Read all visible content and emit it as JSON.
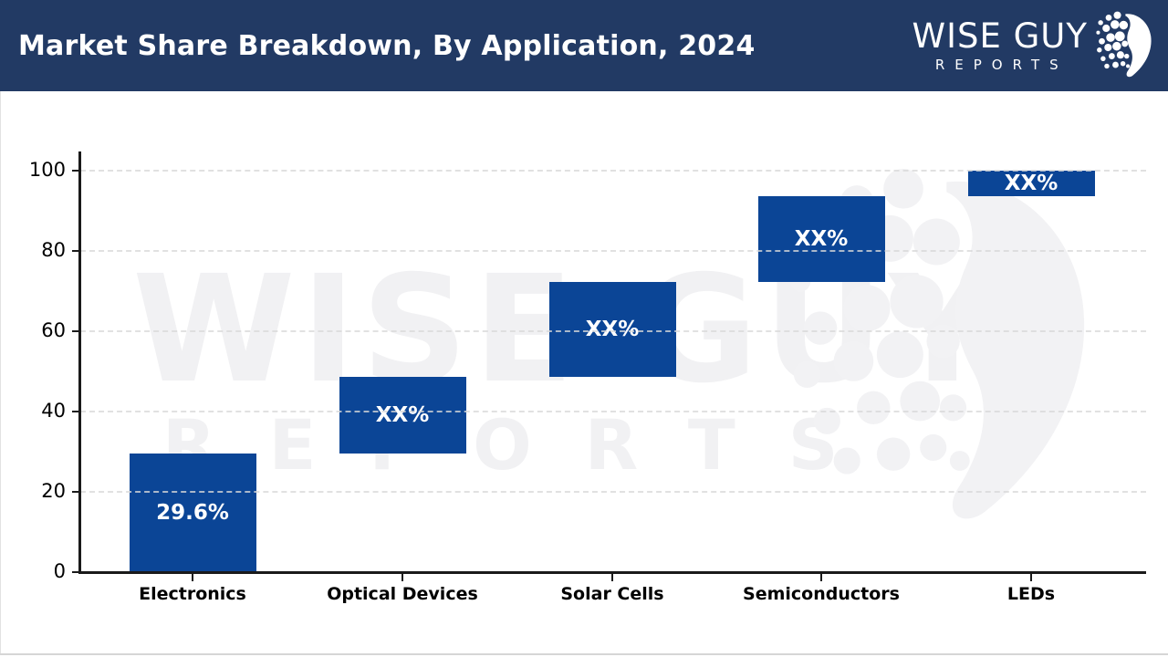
{
  "header": {
    "title": "Market Share Breakdown, By Application, 2024",
    "logo": {
      "wordmark": "WISE GUY",
      "subtext": "REPORTS"
    }
  },
  "watermark": {
    "line1": "WISE GUY",
    "line2": "REPORTS"
  },
  "chart_data": {
    "type": "bar",
    "subtype": "waterfall",
    "title": "Market Share Breakdown, By Application, 2024",
    "categories": [
      "Electronics",
      "Optical Devices",
      "Solar Cells",
      "Semiconductors",
      "LEDs"
    ],
    "segments": [
      {
        "category": "Electronics",
        "start": 0,
        "end": 29.6,
        "label": "29.6%"
      },
      {
        "category": "Optical Devices",
        "start": 29.6,
        "end": 48.6,
        "label": "XX%"
      },
      {
        "category": "Solar Cells",
        "start": 48.6,
        "end": 72.3,
        "label": "XX%"
      },
      {
        "category": "Semiconductors",
        "start": 72.3,
        "end": 93.6,
        "label": "XX%"
      },
      {
        "category": "LEDs",
        "start": 93.6,
        "end": 100,
        "label": "XX%"
      }
    ],
    "yticks": [
      0,
      20,
      40,
      60,
      80,
      100
    ],
    "ylim": [
      0,
      104.5
    ],
    "xlabel": "",
    "ylabel": "",
    "grid": "horizontal-dashed",
    "legend": "none",
    "bar_color": "#0B4596",
    "bar_label_color": "#ffffff"
  },
  "colors": {
    "header_bg": "#223A64",
    "bar": "#0B4596",
    "axis": "#1a1a1a",
    "gridline": "#d9d9d9",
    "watermark": "#f1f1f3"
  }
}
